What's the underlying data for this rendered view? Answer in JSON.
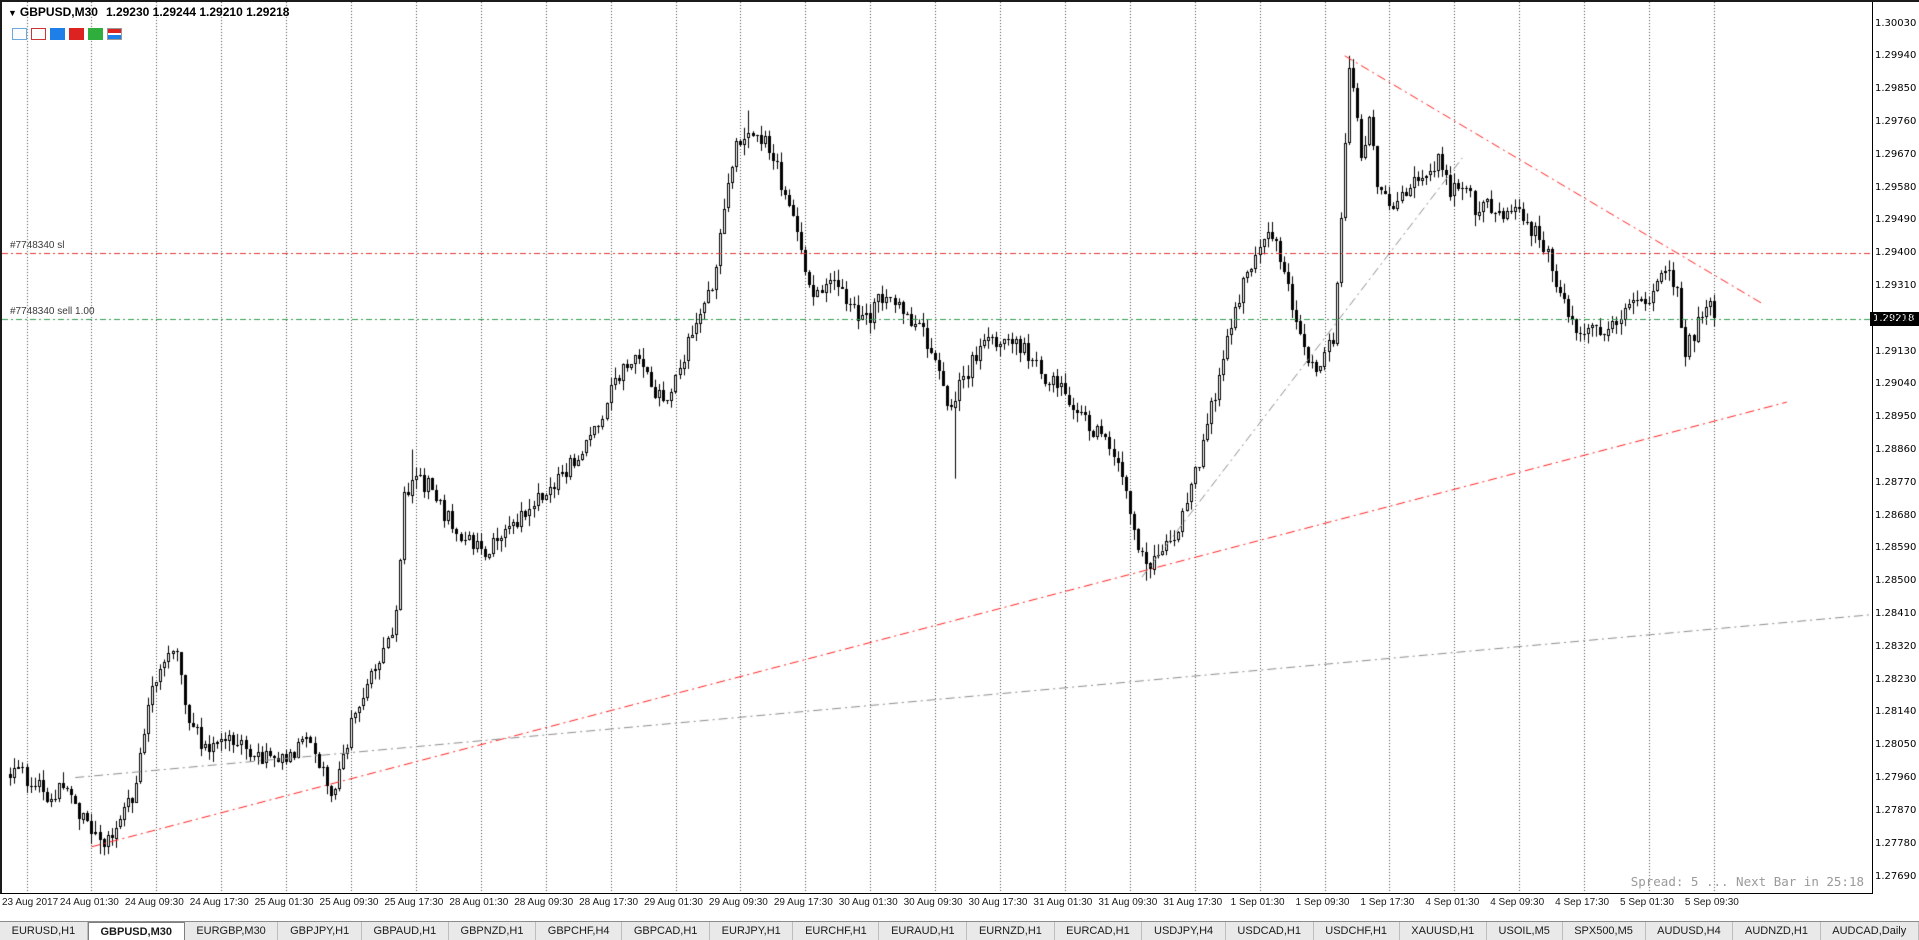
{
  "header": {
    "chart_selector_icon": "▼",
    "symbol": "GBPUSD,M30",
    "ohlc": "1.29230 1.29244 1.29210 1.29218"
  },
  "palette": [
    {
      "name": "empty-blue-square",
      "type": "outline",
      "color": "#6fa8dc"
    },
    {
      "name": "empty-red-square",
      "type": "outline",
      "color": "#cc3333"
    },
    {
      "name": "blue-square",
      "type": "fill",
      "color": "#1f7fe8"
    },
    {
      "name": "red-square",
      "type": "fill",
      "color": "#dd2222"
    },
    {
      "name": "green-square",
      "type": "fill",
      "color": "#2fae3e"
    },
    {
      "name": "red-blue-striped-square",
      "type": "stripes",
      "color": "#dd2222",
      "color2": "#1f7fe8"
    }
  ],
  "orders": {
    "sl": {
      "label": "#7748340 sl",
      "price": 1.294,
      "color": "#e03434"
    },
    "sell": {
      "label": "#7748340 sell 1.00",
      "price": 1.29218,
      "color": "#2e9e50"
    }
  },
  "price_axis": {
    "current_price": "1.29218",
    "ticks": [
      "1.30030",
      "1.29940",
      "1.29850",
      "1.29760",
      "1.29670",
      "1.29580",
      "1.29490",
      "1.29400",
      "1.29310",
      "1.29220",
      "1.29130",
      "1.29040",
      "1.28950",
      "1.28860",
      "1.28770",
      "1.28680",
      "1.28590",
      "1.28500",
      "1.28410",
      "1.28320",
      "1.28230",
      "1.28140",
      "1.28050",
      "1.27960",
      "1.27870",
      "1.27780",
      "1.27690"
    ]
  },
  "status_bar": {
    "spread_text": "Spread: 5 ... Next Bar in 25:18"
  },
  "tabs": {
    "active_index": 1,
    "items": [
      "EURUSD,H1",
      "GBPUSD,M30",
      "EURGBP,M30",
      "GBPJPY,H1",
      "GBPAUD,H1",
      "GBPNZD,H1",
      "GBPCHF,H4",
      "GBPCAD,H1",
      "EURJPY,H1",
      "EURCHF,H1",
      "EURAUD,H1",
      "EURNZD,H1",
      "EURCAD,H1",
      "USDJPY,H4",
      "USDCAD,H1",
      "USDCHF,H1",
      "XAUUSD,H1",
      "USOIL,M5",
      "SPX500,M5",
      "AUDUSD,H4",
      "AUDNZD,H1",
      "AUDCAD,Daily"
    ]
  },
  "chart_data": {
    "type": "candlestick",
    "symbol": "GBPUSD",
    "timeframe": "M30",
    "price_min": 1.2769,
    "price_max": 1.3003,
    "price_step": 0.0009,
    "bar_count": 421,
    "last_price_num": 1.29218,
    "time_labels": [
      "23 Aug 2017",
      "24 Aug 01:30",
      "24 Aug 09:30",
      "24 Aug 17:30",
      "25 Aug 01:30",
      "25 Aug 09:30",
      "25 Aug 17:30",
      "28 Aug 01:30",
      "28 Aug 09:30",
      "28 Aug 17:30",
      "29 Aug 01:30",
      "29 Aug 09:30",
      "29 Aug 17:30",
      "30 Aug 01:30",
      "30 Aug 09:30",
      "30 Aug 17:30",
      "31 Aug 01:30",
      "31 Aug 09:30",
      "31 Aug 17:30",
      "1 Sep 01:30",
      "1 Sep 09:30",
      "1 Sep 17:30",
      "4 Sep 01:30",
      "4 Sep 09:30",
      "4 Sep 17:30",
      "5 Sep 01:30",
      "5 Sep 09:30"
    ],
    "close_waypoints": [
      [
        0,
        1.2798
      ],
      [
        6,
        1.2795
      ],
      [
        10,
        1.279
      ],
      [
        14,
        1.2794
      ],
      [
        18,
        1.2784
      ],
      [
        22,
        1.2777
      ],
      [
        26,
        1.2782
      ],
      [
        30,
        1.279
      ],
      [
        34,
        1.2815
      ],
      [
        38,
        1.283
      ],
      [
        41,
        1.2828
      ],
      [
        44,
        1.2813
      ],
      [
        48,
        1.2804
      ],
      [
        53,
        1.2807
      ],
      [
        58,
        1.2804
      ],
      [
        63,
        1.2801
      ],
      [
        68,
        1.28
      ],
      [
        72,
        1.2806
      ],
      [
        76,
        1.2801
      ],
      [
        79,
        1.2792
      ],
      [
        82,
        1.28
      ],
      [
        85,
        1.2815
      ],
      [
        89,
        1.2823
      ],
      [
        93,
        1.2833
      ],
      [
        95,
        1.284
      ],
      [
        97,
        1.2872
      ],
      [
        100,
        1.2878
      ],
      [
        103,
        1.2876
      ],
      [
        106,
        1.287
      ],
      [
        110,
        1.2864
      ],
      [
        114,
        1.286
      ],
      [
        118,
        1.2858
      ],
      [
        123,
        1.2865
      ],
      [
        128,
        1.2869
      ],
      [
        134,
        1.2877
      ],
      [
        139,
        1.2883
      ],
      [
        144,
        1.289
      ],
      [
        149,
        1.2906
      ],
      [
        154,
        1.2912
      ],
      [
        158,
        1.2904
      ],
      [
        161,
        1.2898
      ],
      [
        165,
        1.291
      ],
      [
        169,
        1.292
      ],
      [
        173,
        1.2931
      ],
      [
        176,
        1.2951
      ],
      [
        179,
        1.2969
      ],
      [
        182,
        1.2974
      ],
      [
        185,
        1.2972
      ],
      [
        188,
        1.2966
      ],
      [
        191,
        1.2956
      ],
      [
        194,
        1.2945
      ],
      [
        197,
        1.2931
      ],
      [
        200,
        1.2928
      ],
      [
        204,
        1.2933
      ],
      [
        208,
        1.2924
      ],
      [
        212,
        1.2923
      ],
      [
        216,
        1.293
      ],
      [
        220,
        1.2923
      ],
      [
        224,
        1.2919
      ],
      [
        228,
        1.2911
      ],
      [
        232,
        1.2896
      ],
      [
        235,
        1.2906
      ],
      [
        239,
        1.2913
      ],
      [
        243,
        1.2916
      ],
      [
        247,
        1.2915
      ],
      [
        251,
        1.2912
      ],
      [
        255,
        1.2906
      ],
      [
        259,
        1.2903
      ],
      [
        263,
        1.2896
      ],
      [
        267,
        1.2891
      ],
      [
        271,
        1.2887
      ],
      [
        274,
        1.2879
      ],
      [
        277,
        1.2864
      ],
      [
        280,
        1.2853
      ],
      [
        283,
        1.2857
      ],
      [
        286,
        1.2861
      ],
      [
        289,
        1.2868
      ],
      [
        292,
        1.2879
      ],
      [
        296,
        1.2897
      ],
      [
        300,
        1.2915
      ],
      [
        304,
        1.2933
      ],
      [
        308,
        1.2942
      ],
      [
        311,
        1.2944
      ],
      [
        314,
        1.2937
      ],
      [
        317,
        1.2921
      ],
      [
        320,
        1.291
      ],
      [
        323,
        1.2908
      ],
      [
        326,
        1.2917
      ],
      [
        328,
        1.295
      ],
      [
        330,
        1.299
      ],
      [
        331,
        1.2985
      ],
      [
        333,
        1.2965
      ],
      [
        335,
        1.2975
      ],
      [
        337,
        1.296
      ],
      [
        340,
        1.2951
      ],
      [
        343,
        1.2957
      ],
      [
        346,
        1.296
      ],
      [
        349,
        1.2963
      ],
      [
        352,
        1.2965
      ],
      [
        355,
        1.2956
      ],
      [
        358,
        1.296
      ],
      [
        361,
        1.2952
      ],
      [
        364,
        1.2955
      ],
      [
        367,
        1.295
      ],
      [
        370,
        1.2953
      ],
      [
        373,
        1.2948
      ],
      [
        376,
        1.2945
      ],
      [
        379,
        1.2939
      ],
      [
        382,
        1.2928
      ],
      [
        385,
        1.2921
      ],
      [
        388,
        1.2917
      ],
      [
        391,
        1.2921
      ],
      [
        394,
        1.2918
      ],
      [
        397,
        1.2922
      ],
      [
        400,
        1.2925
      ],
      [
        403,
        1.2927
      ],
      [
        406,
        1.2931
      ],
      [
        409,
        1.2937
      ],
      [
        411,
        1.2928
      ],
      [
        413,
        1.2912
      ],
      [
        415,
        1.2918
      ],
      [
        417,
        1.2922
      ],
      [
        419,
        1.2925
      ],
      [
        420,
        1.29218
      ]
    ],
    "wick_overrides": [
      {
        "bar": 22,
        "low": 1.2775
      },
      {
        "bar": 99,
        "high": 1.2886
      },
      {
        "bar": 182,
        "high": 1.2979
      },
      {
        "bar": 233,
        "low": 1.2878
      },
      {
        "bar": 280,
        "low": 1.285
      },
      {
        "bar": 330,
        "high": 1.2994
      },
      {
        "bar": 413,
        "low": 1.291
      }
    ],
    "trendlines": [
      {
        "name": "ascending-support-red",
        "color": "#ff2222",
        "from": [
          20,
          1.2777
        ],
        "to": [
          438,
          1.2899
        ]
      },
      {
        "name": "descending-resistance-red",
        "color": "#ff2222",
        "from": [
          329,
          1.2994
        ],
        "to": [
          432,
          1.2926
        ]
      },
      {
        "name": "ascending-gray-long",
        "color": "#8c8c8c",
        "from": [
          16,
          1.2796
        ],
        "to": [
          462,
          1.2841
        ]
      },
      {
        "name": "ascending-gray-steep",
        "color": "#8c8c8c",
        "from": [
          279,
          1.2851
        ],
        "to": [
          358,
          1.2966
        ]
      }
    ],
    "grid": {
      "vertical_dotted": true,
      "horizontal": false
    }
  }
}
